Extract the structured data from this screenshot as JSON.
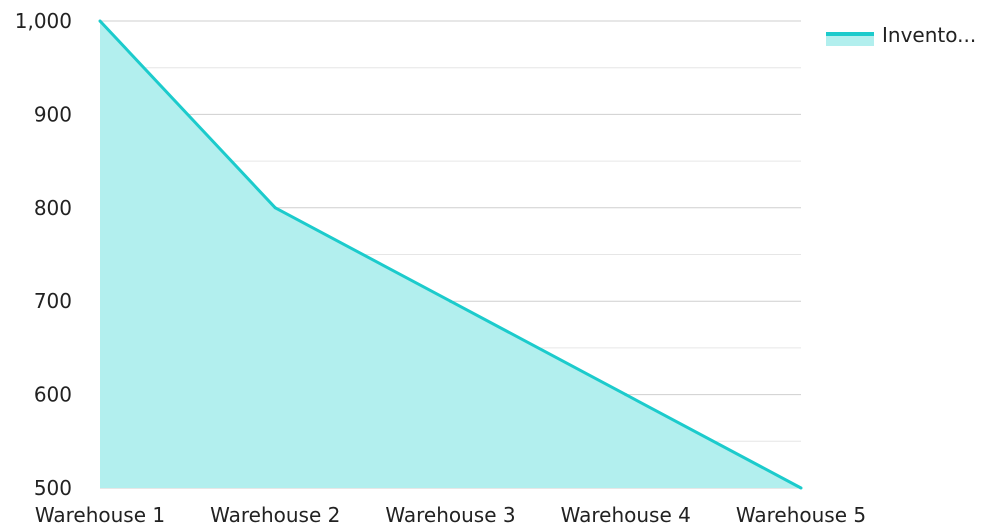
{
  "chart_data": {
    "type": "area",
    "title": "",
    "xlabel": "",
    "ylabel": "",
    "categories": [
      "Warehouse 1",
      "Warehouse 2",
      "Warehouse 3",
      "Warehouse 4",
      "Warehouse 5"
    ],
    "series": [
      {
        "name": "Invento...",
        "values": [
          1000,
          800,
          700,
          600,
          500
        ]
      }
    ],
    "ylim": [
      500,
      1000
    ],
    "yticks": [
      500,
      600,
      700,
      800,
      900,
      1000
    ],
    "ytick_labels": [
      "500",
      "600",
      "700",
      "800",
      "900",
      "1,000"
    ],
    "grid": true,
    "legend_position": "top-right",
    "colors": {
      "line": "#1ccbcc",
      "fill": "#b2efee",
      "grid": "#cfcfcf",
      "minor_grid": "#e6e6e6"
    }
  }
}
